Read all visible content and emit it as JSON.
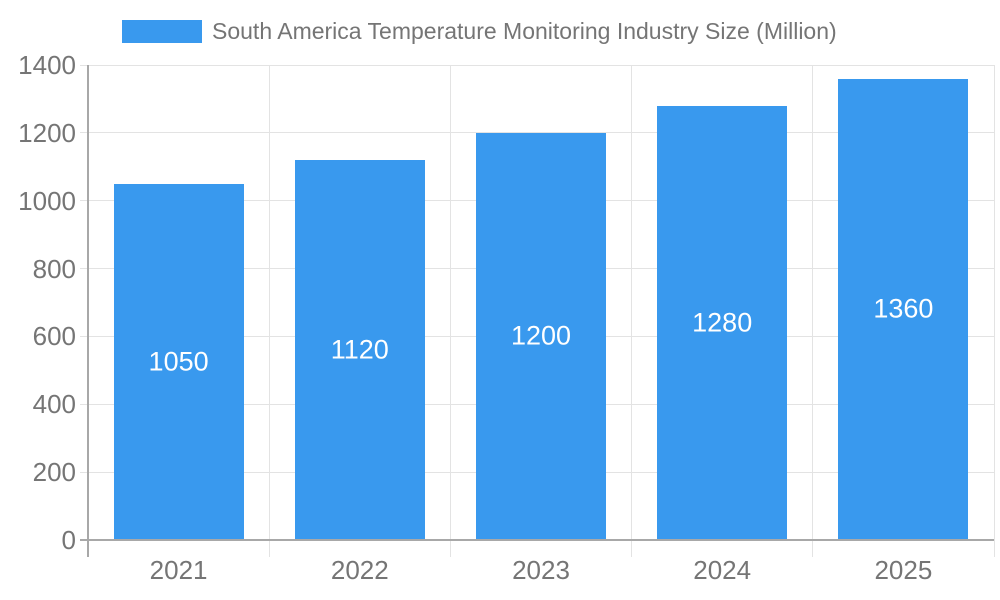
{
  "chart_data": {
    "type": "bar",
    "title": "South America Temperature Monitoring Industry Size (Million)",
    "legend": [
      "South America Temperature Monitoring Industry Size (Million)"
    ],
    "legend_position": "top-left",
    "categories": [
      "2021",
      "2022",
      "2023",
      "2024",
      "2025"
    ],
    "values": [
      1050,
      1120,
      1200,
      1280,
      1360
    ],
    "data_labels": [
      "1050",
      "1120",
      "1200",
      "1280",
      "1360"
    ],
    "data_label_position": "inside-center",
    "xlabel": "",
    "ylabel": "",
    "ylim": [
      0,
      1400
    ],
    "ytick_step": 200,
    "yticks": [
      "0",
      "200",
      "400",
      "600",
      "800",
      "1000",
      "1200",
      "1400"
    ],
    "grid": true,
    "colors": {
      "bar": "#3999EE",
      "bar_label_text": "#FFFFFF",
      "axis_line": "#A8A8A8",
      "gridline": "#E3E3E3",
      "tick_text": "#757575",
      "legend_text": "#757575",
      "background": "#FFFFFF"
    }
  }
}
